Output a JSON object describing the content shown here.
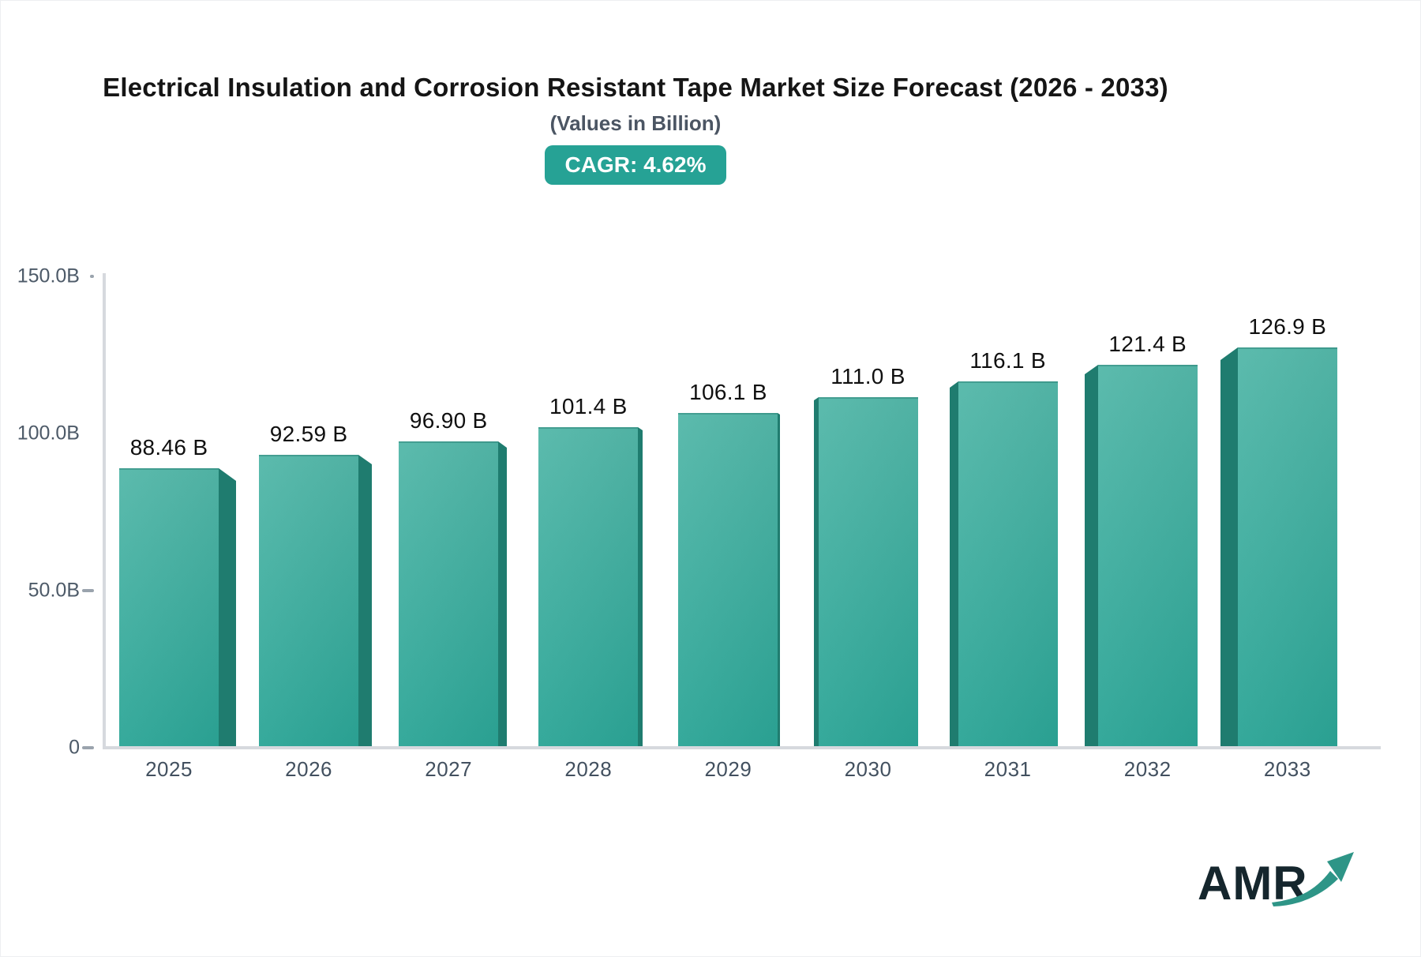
{
  "header": {
    "title": "Electrical Insulation and Corrosion Resistant Tape Market Size Forecast (2026 - 2033)",
    "subtitle": "(Values in Billion)",
    "cagr_badge": "CAGR: 4.62%"
  },
  "logo": {
    "text": "AMR",
    "icon": "growth-arrow-icon"
  },
  "colors": {
    "badge_bg": "#26a295",
    "bar_face_top": "#4eb5a6",
    "bar_face_bottom": "#2ca899",
    "bar_side": "#1f7c6f",
    "axis_line": "#d6d9de",
    "tick_mark": "#9aa3ad",
    "logo_text": "#15262d",
    "logo_arrow": "#2e9587"
  },
  "chart_data": {
    "type": "bar",
    "style": "3d-perspective-bars",
    "title": "Electrical Insulation and Corrosion Resistant Tape Market Size Forecast (2026 - 2033)",
    "subtitle": "(Values in Billion)",
    "cagr": "4.62%",
    "unit": "Billion",
    "categories": [
      "2025",
      "2026",
      "2027",
      "2028",
      "2029",
      "2030",
      "2031",
      "2032",
      "2033"
    ],
    "values": [
      88.46,
      92.59,
      96.9,
      101.4,
      106.1,
      111.0,
      116.1,
      121.4,
      126.9
    ],
    "value_labels": [
      "88.46 B",
      "92.59 B",
      "96.90 B",
      "101.4 B",
      "106.1 B",
      "111.0 B",
      "116.1 B",
      "121.4 B",
      "126.9 B"
    ],
    "xlabel": "",
    "ylabel": "",
    "ylim": [
      0,
      150
    ],
    "yticks": [
      {
        "value": 150,
        "label": "150.0B",
        "mark": "dot"
      },
      {
        "value": 100,
        "label": "100.0B",
        "mark": "none"
      },
      {
        "value": 50,
        "label": "50.0B",
        "mark": "dash"
      },
      {
        "value": 0,
        "label": "0",
        "mark": "dash"
      }
    ],
    "grid": false,
    "legend": false
  }
}
